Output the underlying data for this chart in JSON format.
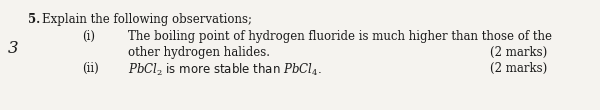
{
  "background_color": "#f5f3ef",
  "question_number": "5.",
  "question_intro": "Explain the following observations;",
  "part_i_label": "(i)",
  "part_i_text_line1": "The boiling point of hydrogen fluoride is much higher than those of the",
  "part_i_text_line2": "other hydrogen halides.",
  "part_i_marks": "(2 marks)",
  "part_ii_label": "(ii)",
  "part_ii_marks": "(2 marks)",
  "left_number": "3",
  "font_size_main": 8.5,
  "font_size_left": 12,
  "text_color": "#1a1a1a"
}
